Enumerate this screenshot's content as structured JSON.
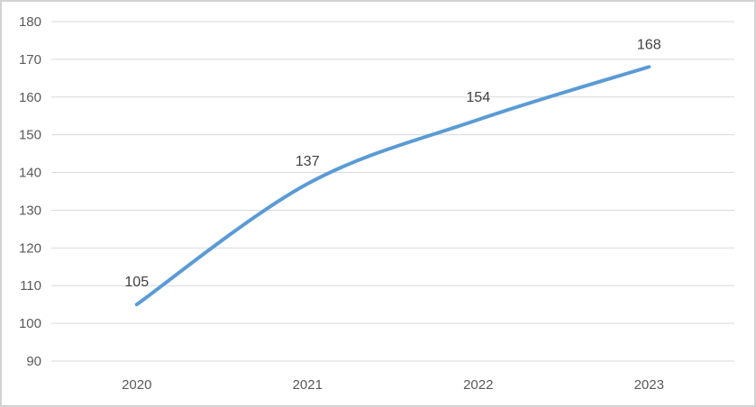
{
  "chart_data": {
    "type": "line",
    "title": "",
    "categories": [
      "2020",
      "2021",
      "2022",
      "2023"
    ],
    "series": [
      {
        "name": "",
        "values": [
          105,
          137,
          154,
          168
        ],
        "data_labels": [
          "105",
          "137",
          "154",
          "168"
        ],
        "color": "#5B9BD5",
        "smooth": true
      }
    ],
    "xlabel": "",
    "ylabel": "",
    "ylim": [
      90,
      180
    ],
    "y_ticks": [
      "90",
      "100",
      "110",
      "120",
      "130",
      "140",
      "150",
      "160",
      "170",
      "180"
    ],
    "y_tick_step": 10,
    "grid": "horizontal-only",
    "legend_position": "none",
    "data_label_position": "above",
    "colors": {
      "line": "#5B9BD5",
      "gridline": "#D9D9D9",
      "axis_text": "#595959",
      "data_label_text": "#404040",
      "frame_border": "#D2D2D2",
      "background": "#FFFFFF"
    }
  }
}
